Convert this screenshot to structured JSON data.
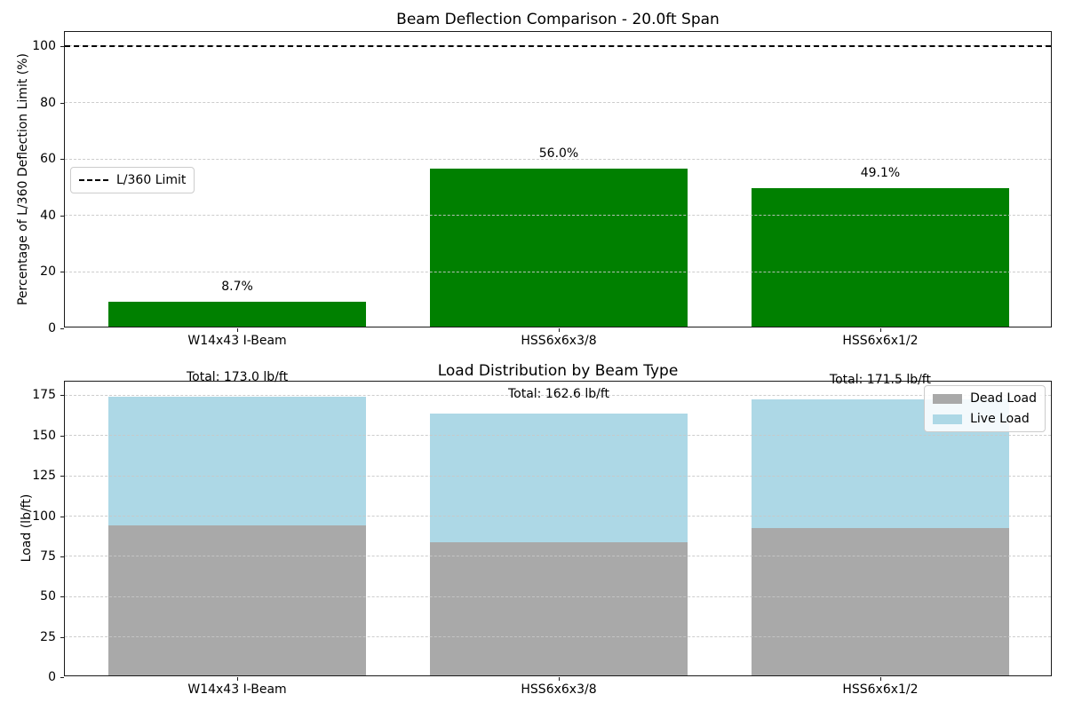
{
  "chart_data": [
    {
      "type": "bar",
      "title": "Beam Deflection Comparison - 20.0ft Span",
      "ylabel": "Percentage of L/360 Deflection Limit (%)",
      "xlabel": "",
      "categories": [
        "W14x43 I-Beam",
        "HSS6x6x3/8",
        "HSS6x6x1/2"
      ],
      "values": [
        8.7,
        56.0,
        49.1
      ],
      "bar_labels": [
        "8.7%",
        "56.0%",
        "49.1%"
      ],
      "bar_color": "#008000",
      "yticks": [
        0,
        20,
        40,
        60,
        80,
        100
      ],
      "ylim": [
        0,
        105
      ],
      "grid": "horizontal-dashed",
      "reference_line": {
        "value": 100,
        "style": "dashed",
        "color": "#000000",
        "legend_label": "L/360 Limit"
      },
      "legend_position": "center-left"
    },
    {
      "type": "bar-stacked",
      "title": "Load Distribution by Beam Type",
      "ylabel": "Load (lb/ft)",
      "xlabel": "",
      "categories": [
        "W14x43 I-Beam",
        "HSS6x6x3/8",
        "HSS6x6x1/2"
      ],
      "series": [
        {
          "name": "Dead Load",
          "color": "#a9a9a9",
          "values": [
            93.0,
            82.6,
            91.5
          ]
        },
        {
          "name": "Live Load",
          "color": "#add8e6",
          "values": [
            80.0,
            80.0,
            80.0
          ]
        }
      ],
      "totals": [
        173.0,
        162.6,
        171.5
      ],
      "total_labels": [
        "Total: 173.0 lb/ft",
        "Total: 162.6 lb/ft",
        "Total: 171.5 lb/ft"
      ],
      "yticks": [
        0,
        25,
        50,
        75,
        100,
        125,
        150,
        175
      ],
      "ylim": [
        0,
        183.5
      ],
      "grid": "horizontal-dashed",
      "legend_position": "upper-right"
    }
  ]
}
